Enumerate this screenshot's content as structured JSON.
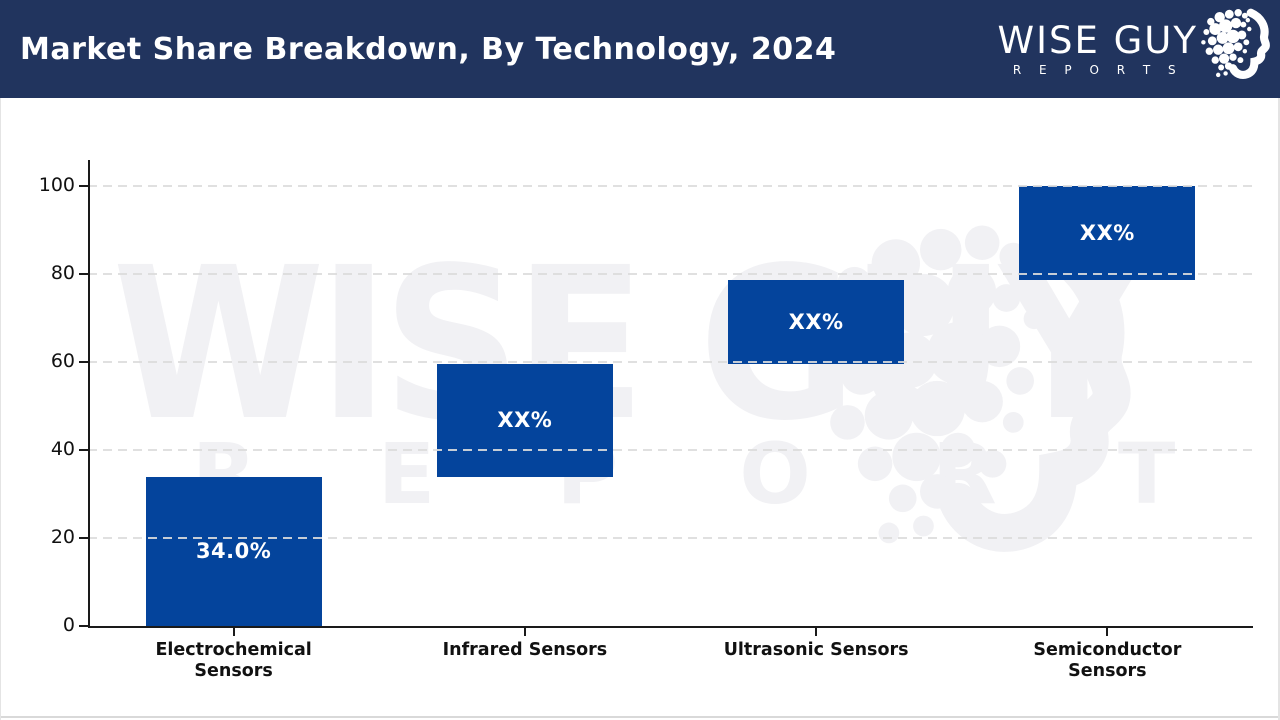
{
  "header": {
    "title": "Market Share Breakdown, By Technology, 2024",
    "background_color": "#21345E",
    "text_color": "#FFFFFF",
    "logo": {
      "line1": "WISE GUY",
      "line2": "R E P O R T S"
    }
  },
  "watermark": {
    "line1": "WISE GUY",
    "line2": "R E P O R T S"
  },
  "chart_data": {
    "type": "bar",
    "subtype": "waterfall",
    "title": "Market Share Breakdown, By Technology, 2024",
    "categories": [
      "Electrochemical Sensors",
      "Infrared Sensors",
      "Ultrasonic Sensors",
      "Semiconductor Sensors"
    ],
    "segments": [
      {
        "category": "Electrochemical Sensors",
        "start": 0,
        "end": 34,
        "label": "34.0%"
      },
      {
        "category": "Infrared Sensors",
        "start": 34,
        "end": 59.5,
        "label": "XX%"
      },
      {
        "category": "Ultrasonic Sensors",
        "start": 59.5,
        "end": 78.7,
        "label": "XX%"
      },
      {
        "category": "Semiconductor Sensors",
        "start": 78.7,
        "end": 100,
        "label": "XX%"
      }
    ],
    "y_ticks": [
      0,
      20,
      40,
      60,
      80,
      100
    ],
    "ylim": [
      0,
      106
    ],
    "xlabel": "",
    "ylabel": "",
    "grid": "horizontal-dashed-over-bars",
    "legend": "none",
    "bar_color": "#04449C",
    "bar_label_color": "#FFFFFF",
    "gridline_color": "#DCDCDC",
    "axis_color": "#1A1A1A"
  }
}
